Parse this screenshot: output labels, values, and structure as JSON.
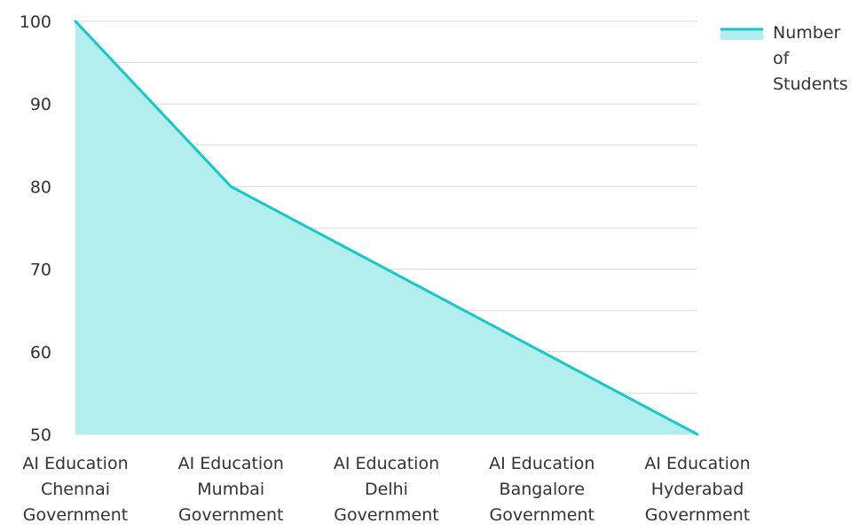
{
  "chart_data": {
    "type": "area",
    "categories": [
      "AI Education\nChennai\nGovernment",
      "AI Education\nMumbai\nGovernment",
      "AI Education\nDelhi\nGovernment",
      "AI Education\nBangalore\nGovernment",
      "AI Education\nHyderabad\nGovernment"
    ],
    "series": [
      {
        "name": "Number of Students",
        "values": [
          100,
          80,
          70,
          60,
          50
        ]
      }
    ],
    "title": "",
    "xlabel": "",
    "ylabel": "",
    "ylim": [
      50,
      100
    ],
    "yticks": [
      50,
      60,
      70,
      80,
      90,
      100
    ],
    "grid": true,
    "legend_position": "top-right",
    "colors": {
      "line": "#18c7c9",
      "fill": "#b3eeee",
      "grid": "#d9d9d9",
      "axis_text": "#333333"
    }
  }
}
